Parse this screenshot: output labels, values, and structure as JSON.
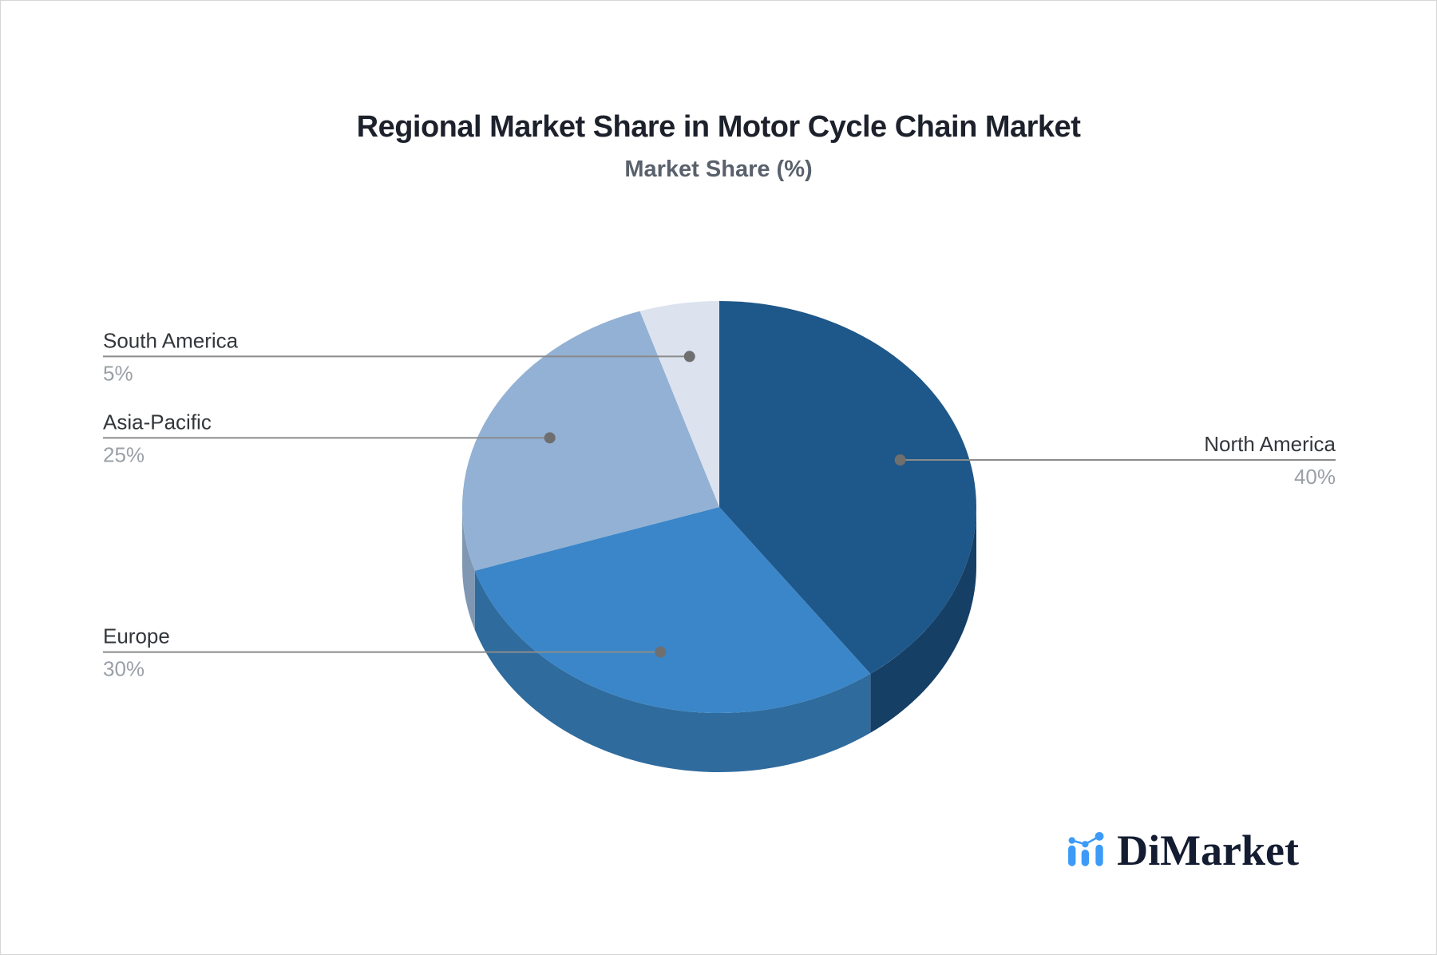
{
  "header": {
    "title": "Regional Market Share in Motor Cycle Chain Market",
    "subtitle": "Market Share (%)"
  },
  "chart_data": {
    "type": "pie",
    "style": "3d-depth-pie",
    "title": "Regional Market Share in Motor Cycle Chain Market",
    "subtitle": "Market Share (%)",
    "unit": "%",
    "start_angle": "top",
    "direction": "clockwise",
    "legend": "none",
    "label_style": "callout-lines",
    "categories": [
      "North America",
      "Europe",
      "Asia-Pacific",
      "South America"
    ],
    "values": [
      40,
      30,
      25,
      5
    ],
    "slices": [
      {
        "label": "North America",
        "value": 40,
        "pct": "40%",
        "color": "#1e5789",
        "side_color": "#163f66"
      },
      {
        "label": "Europe",
        "value": 30,
        "pct": "30%",
        "color": "#3a86c8",
        "side_color": "#2f6b9d"
      },
      {
        "label": "Asia-Pacific",
        "value": 25,
        "pct": "25%",
        "color": "#92b1d4",
        "side_color": "#7f97b2"
      },
      {
        "label": "South America",
        "value": 5,
        "pct": "5%",
        "color": "#dce3ef",
        "side_color": "#b9c4d6"
      }
    ]
  },
  "ui_colors": {
    "title_text": "#1c212b",
    "subtitle_text": "#59616c",
    "label_text": "#33373c",
    "pct_text": "#9aa0a6",
    "leader_line": "#8b8b8b",
    "leader_dot": "#6f6f6f",
    "logo_text": "#131c31",
    "logo_icon": "#3d9bf7"
  },
  "logo": {
    "name": "DiMarket"
  }
}
